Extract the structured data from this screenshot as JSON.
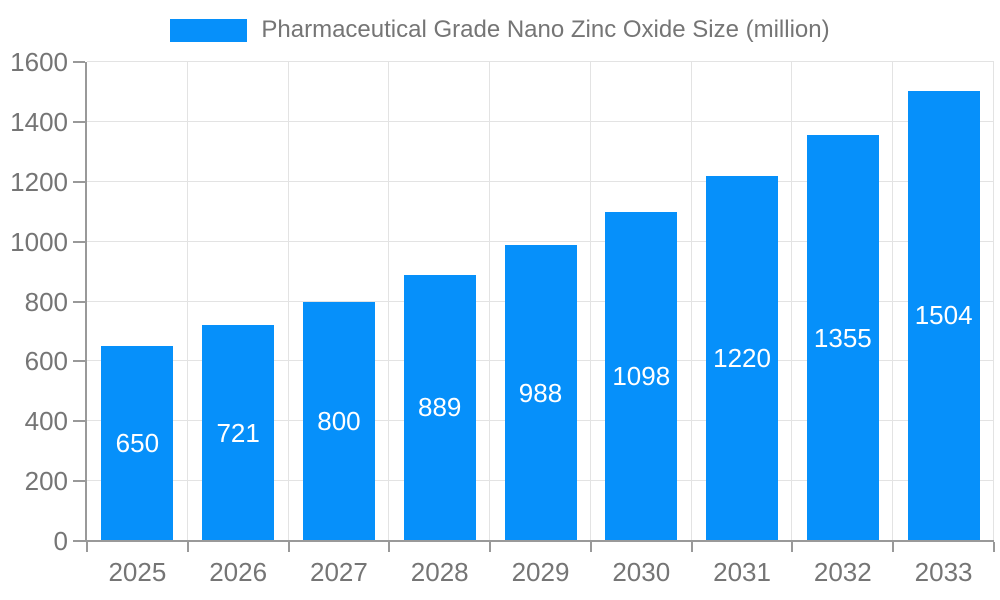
{
  "legend": {
    "label": "Pharmaceutical Grade Nano Zinc Oxide Size (million)"
  },
  "chart_data": {
    "type": "bar",
    "title": "Pharmaceutical Grade Nano Zinc Oxide Size (million)",
    "categories": [
      "2025",
      "2026",
      "2027",
      "2028",
      "2029",
      "2030",
      "2031",
      "2032",
      "2033"
    ],
    "values": [
      650,
      721,
      800,
      889,
      988,
      1098,
      1220,
      1355,
      1504
    ],
    "xlabel": "",
    "ylabel": "",
    "ylim": [
      0,
      1600
    ],
    "yticks": [
      0,
      200,
      400,
      600,
      800,
      1000,
      1200,
      1400,
      1600
    ],
    "grid": true,
    "legend_position": "top",
    "bar_labels_inside": true
  },
  "colors": {
    "bar": "#0690fa",
    "bar_label": "#ffffff",
    "axis": "#999999",
    "grid": "#e3e3e3",
    "text": "#757575"
  }
}
